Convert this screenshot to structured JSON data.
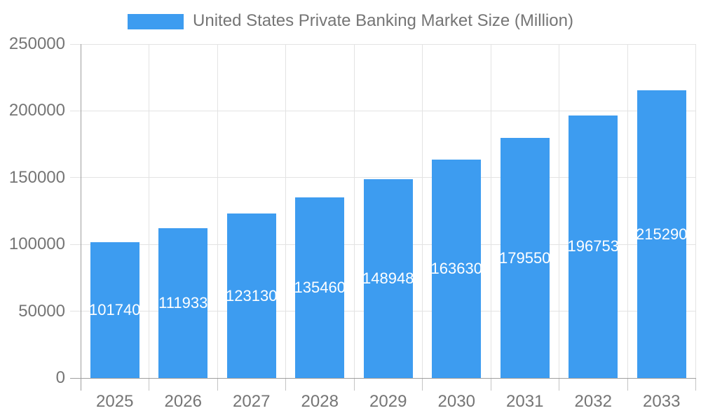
{
  "legend": {
    "label": "United States Private Banking Market Size (Million)"
  },
  "chart_data": {
    "type": "bar",
    "title": "United States Private Banking Market Size (Million)",
    "categories": [
      "2025",
      "2026",
      "2027",
      "2028",
      "2029",
      "2030",
      "2031",
      "2032",
      "2033"
    ],
    "series": [
      {
        "name": "United States Private Banking Market Size (Million)",
        "values": [
          101740,
          111933,
          123130,
          135460,
          148948,
          163630,
          179550,
          196753,
          215290
        ]
      }
    ],
    "xlabel": "",
    "ylabel": "",
    "ylim": [
      0,
      250000
    ],
    "yticks": [
      0,
      50000,
      100000,
      150000,
      200000,
      250000
    ],
    "grid": "horizontal-and-vertical",
    "legend_position": "top-center",
    "value_labels": "inside-center-white-clipped-to-bar"
  },
  "colors": {
    "bar": "#3D9CF0",
    "bar_label": "#FFFFFF",
    "grid": "#E3E3E3",
    "axis": "#9E9E9E",
    "tick": "#C4C4C4",
    "text": "#757575",
    "background": "#FFFFFF"
  }
}
